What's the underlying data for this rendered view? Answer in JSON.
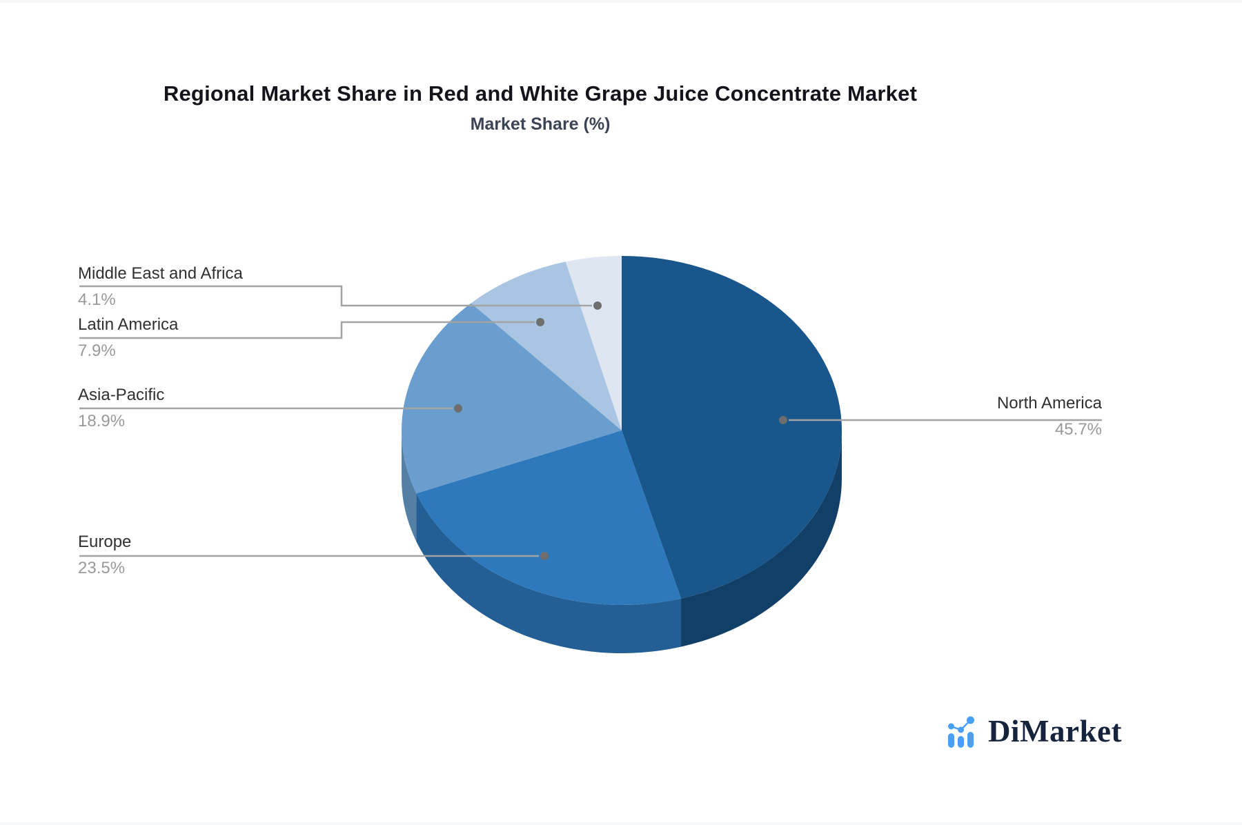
{
  "header": {
    "title": "Regional Market Share in Red and White Grape Juice Concentrate Market",
    "subtitle": "Market Share (%)"
  },
  "chart_data": {
    "type": "pie",
    "title": "Regional Market Share in Red and White Grape Juice Concentrate Market",
    "subtitle": "Market Share (%)",
    "unit": "%",
    "style": "3d-pie",
    "start_angle_deg": 0,
    "direction": "clockwise",
    "legend": "none",
    "slices": [
      {
        "label": "North America",
        "value": 45.7,
        "color": "#19568c",
        "side_color": "#123f68"
      },
      {
        "label": "Europe",
        "value": 23.5,
        "color": "#2e79bc",
        "side_color": "#235e94"
      },
      {
        "label": "Asia-Pacific",
        "value": 18.9,
        "color": "#699ecf",
        "side_color": "#5480a6"
      },
      {
        "label": "Latin America",
        "value": 7.9,
        "color": "#a9c5e2",
        "side_color": "#84a0bd"
      },
      {
        "label": "Middle East and Africa",
        "value": 4.1,
        "color": "#dee6f1",
        "side_color": "#aebccd"
      }
    ]
  },
  "callouts": [
    {
      "label": "North America",
      "value_text": "45.7%"
    },
    {
      "label": "Europe",
      "value_text": "23.5%"
    },
    {
      "label": "Asia-Pacific",
      "value_text": "18.9%"
    },
    {
      "label": "Latin America",
      "value_text": "7.9%"
    },
    {
      "label": "Middle East and Africa",
      "value_text": "4.1%"
    }
  ],
  "logo": {
    "text": "DiMarket",
    "icon": "bar-chart-trend-icon",
    "icon_color": "#47a0f4",
    "text_color": "#16233c"
  },
  "colors": {
    "leader_line": "#a3a3a3",
    "leader_dot": "#6e6e6e",
    "label_text": "#303030",
    "value_text": "#999999"
  }
}
